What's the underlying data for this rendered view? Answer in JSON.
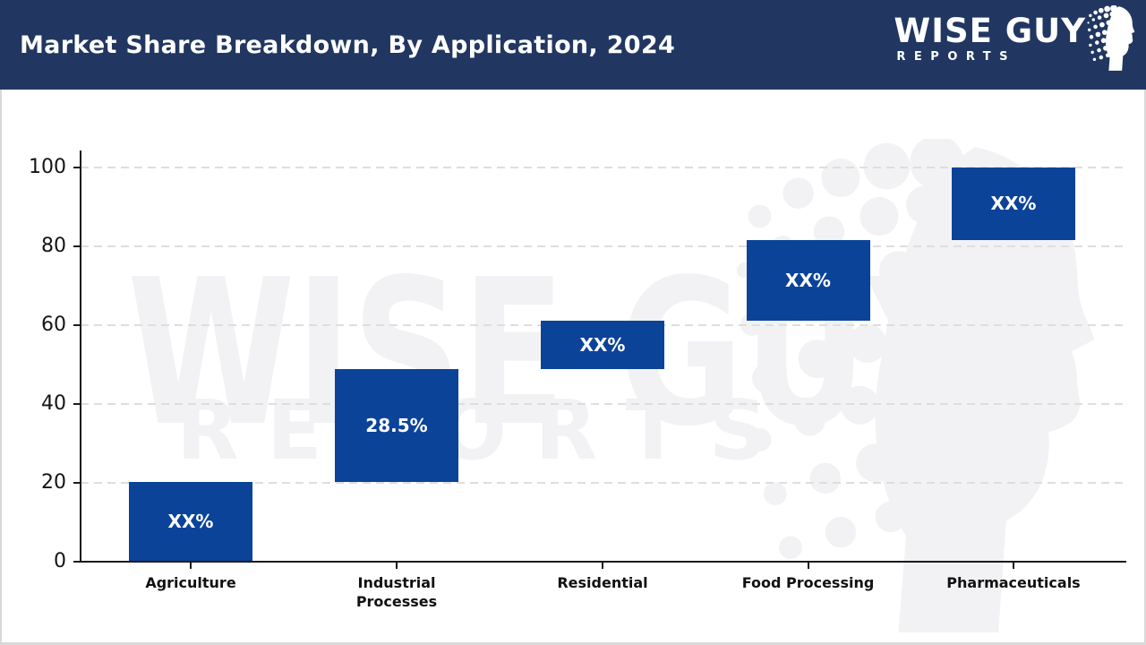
{
  "header": {
    "title": "Market Share Breakdown, By Application, 2024",
    "logo": {
      "line1": "WISE GUY",
      "line2": "REPORTS",
      "head_icon": "dotted-head-profile"
    }
  },
  "watermark": {
    "line1": "WISE GUY",
    "line2": "R E P O R T S",
    "head_icon": "dotted-head-profile"
  },
  "colors": {
    "header_bg": "#213761",
    "bar": "#0b4399",
    "bar_label": "#ffffff",
    "gridline": "#dedede",
    "axis": "#1a1a1a",
    "watermark": "#f2f2f4"
  },
  "chart_data": {
    "type": "bar",
    "subtype": "floating-waterfall",
    "title": "Market Share Breakdown, By Application, 2024",
    "categories": [
      "Agriculture",
      "Industrial Processes",
      "Residential",
      "Food Processing",
      "Pharmaceuticals"
    ],
    "segments": [
      {
        "category": "Agriculture",
        "start": 0,
        "end": 20.3,
        "value": 20.3,
        "label": "XX%"
      },
      {
        "category": "Industrial Processes",
        "start": 20.3,
        "end": 48.8,
        "value": 28.5,
        "label": "28.5%"
      },
      {
        "category": "Residential",
        "start": 48.8,
        "end": 61.1,
        "value": 12.3,
        "label": "XX%"
      },
      {
        "category": "Food Processing",
        "start": 61.1,
        "end": 81.6,
        "value": 20.5,
        "label": "XX%"
      },
      {
        "category": "Pharmaceuticals",
        "start": 81.6,
        "end": 100,
        "value": 18.4,
        "label": "XX%"
      }
    ],
    "yticks": [
      0,
      20,
      40,
      60,
      80,
      100
    ],
    "ylim": [
      0,
      100
    ],
    "xlabel": "",
    "ylabel": "",
    "grid": "dashed-horizontal",
    "legend": "none"
  }
}
